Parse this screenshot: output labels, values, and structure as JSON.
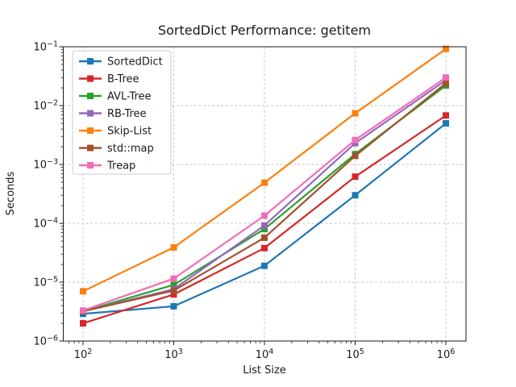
{
  "chart_data": {
    "type": "line",
    "title": "SortedDict Performance: getitem",
    "xlabel": "List Size",
    "ylabel": "Seconds",
    "xscale": "log",
    "yscale": "log",
    "xlim": [
      60,
      1670000
    ],
    "ylim": [
      1e-06,
      0.1
    ],
    "grid": true,
    "legend_position": "upper-left",
    "marker": "square",
    "xtick_labels": [
      "10^2",
      "10^3",
      "10^4",
      "10^5",
      "10^6"
    ],
    "ytick_labels": [
      "10^-1",
      "10^-2",
      "10^-3",
      "10^-4",
      "10^-5",
      "10^-6"
    ],
    "x": [
      100,
      1000,
      10000,
      100000,
      1000000
    ],
    "series": [
      {
        "name": "SortedDict",
        "color": "#1f77b4",
        "values": [
          2.9e-06,
          3.9e-06,
          1.9e-05,
          0.0003,
          0.005
        ]
      },
      {
        "name": "B-Tree",
        "color": "#d62728",
        "values": [
          2e-06,
          6.2e-06,
          3.8e-05,
          0.00062,
          0.0068
        ]
      },
      {
        "name": "AVL-Tree",
        "color": "#2ca02c",
        "values": [
          3.2e-06,
          9e-06,
          8e-05,
          0.0015,
          0.022
        ]
      },
      {
        "name": "RB-Tree",
        "color": "#9467bd",
        "values": [
          3.2e-06,
          7.6e-06,
          9.2e-05,
          0.0023,
          0.027
        ]
      },
      {
        "name": "Skip-List",
        "color": "#ff7f0e",
        "values": [
          7e-06,
          3.9e-05,
          0.00049,
          0.0074,
          0.092
        ]
      },
      {
        "name": "std::map",
        "color": "#a0522d",
        "values": [
          3.2e-06,
          7.2e-06,
          5.7e-05,
          0.0014,
          0.024
        ]
      },
      {
        "name": "Treap",
        "color": "#f06eb8",
        "values": [
          3.3e-06,
          1.15e-05,
          0.000135,
          0.0026,
          0.03
        ]
      }
    ]
  },
  "style_colors": {
    "grid": "#c3c3c3",
    "spine": "#1a1a1a",
    "legend_border": "#cccccc",
    "legend_bg": "#ffffff"
  }
}
